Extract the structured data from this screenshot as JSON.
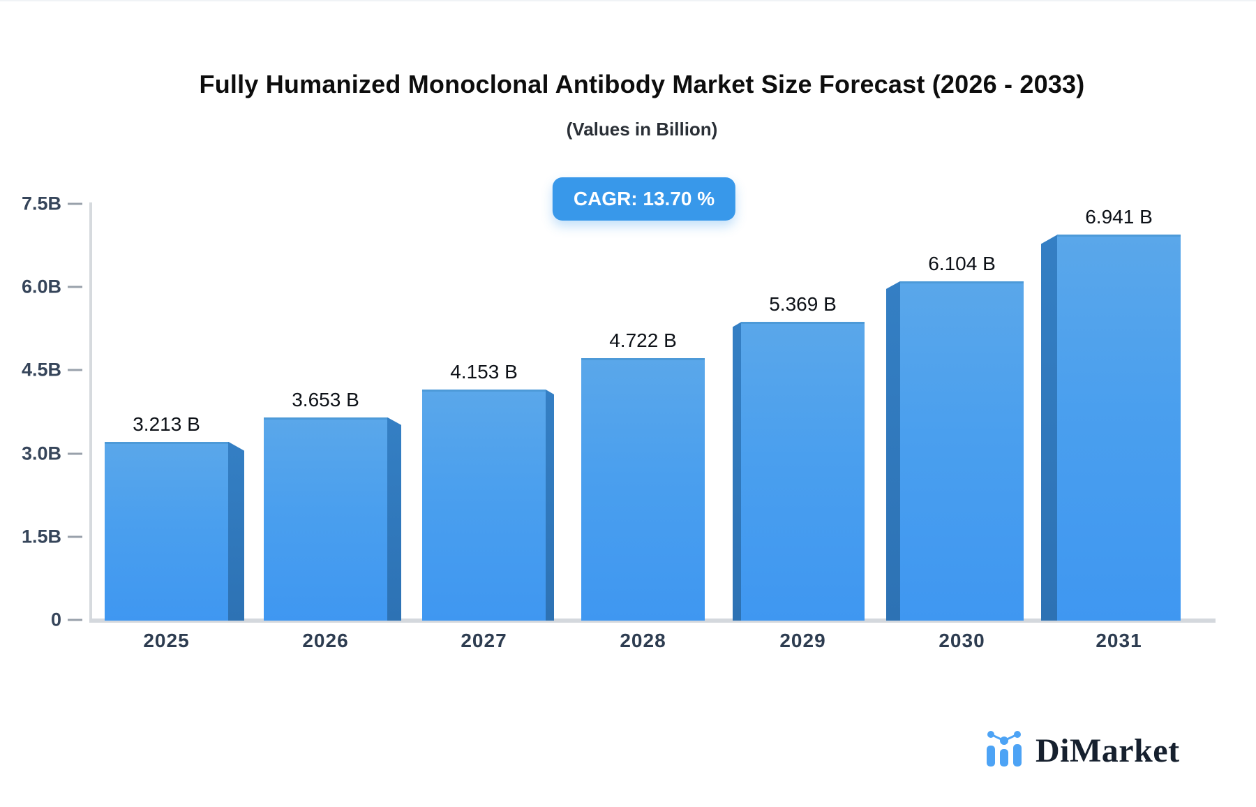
{
  "header": {
    "title": "Fully Humanized Monoclonal Antibody Market Size Forecast (2026 - 2033)",
    "subtitle": "(Values in Billion)"
  },
  "badge": {
    "label": "CAGR: 13.70 %"
  },
  "chart_data": {
    "type": "bar",
    "title": "Fully Humanized Monoclonal Antibody Market Size Forecast (2026 - 2033)",
    "subtitle": "(Values in Billion)",
    "cagr_annotation": "CAGR: 13.70 %",
    "categories": [
      "2025",
      "2026",
      "2027",
      "2028",
      "2029",
      "2030",
      "2031"
    ],
    "values": [
      3.213,
      3.653,
      4.153,
      4.722,
      5.369,
      6.104,
      6.941
    ],
    "value_labels": [
      "3.213 B",
      "3.653 B",
      "4.153 B",
      "4.722 B",
      "5.369 B",
      "6.104 B",
      "6.941 B"
    ],
    "xlabel": "",
    "ylabel": "",
    "ylim": [
      0,
      7.5
    ],
    "y_ticks": [
      {
        "value": 7.5,
        "label": "7.5B"
      },
      {
        "value": 6.0,
        "label": "6.0B"
      },
      {
        "value": 4.5,
        "label": "4.5B"
      },
      {
        "value": 3.0,
        "label": "3.0B"
      },
      {
        "value": 1.5,
        "label": "1.5B"
      },
      {
        "value": 0,
        "label": "0"
      }
    ],
    "grid": "off",
    "legend": "none",
    "bar_style": "3d-extruded-center-perspective"
  },
  "colors": {
    "bar_face_top": "#5aa7ea",
    "bar_face_bottom": "#3f97f1",
    "bar_side": "#2d72b4",
    "axis_line": "#d5d9dd",
    "tick_dash": "#99a1ab",
    "tick_label": "#36455a",
    "value_label": "#0d1117",
    "badge_bg": "#3898ea",
    "badge_text": "#ffffff",
    "logo_icon": "#4da3f5",
    "logo_text": "#16202e"
  },
  "footer": {
    "brand": "DiMarket",
    "logo_icon": "bar-line-chart-icon"
  }
}
